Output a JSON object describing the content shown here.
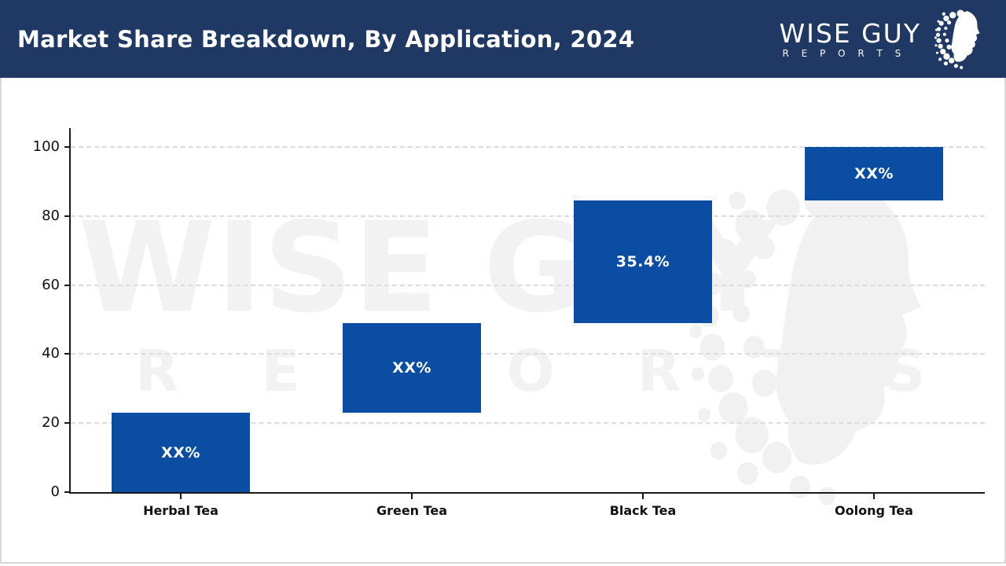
{
  "header": {
    "title": "Market Share Breakdown, By Application, 2024"
  },
  "logo": {
    "name_line": "WISE GUY",
    "sub_line": "R E P O R T S"
  },
  "watermark": {
    "name_line": "WISE GUY",
    "sub_line": "R E P O R T S"
  },
  "colors": {
    "header_bg": "#1f3864",
    "bar_fill": "#0b4da2",
    "grid_line": "#dcdcdc",
    "axis": "#1a1a1a",
    "bar_label_text": "#ffffff"
  },
  "chart_data": {
    "type": "bar",
    "variant": "floating-waterfall",
    "title": "Market Share Breakdown, By Application, 2024",
    "categories": [
      "Herbal Tea",
      "Green Tea",
      "Black Tea",
      "Oolong Tea"
    ],
    "series": [
      {
        "name": "Market share (%)",
        "segments": [
          {
            "category": "Herbal Tea",
            "start": 0,
            "end": 23,
            "label": "XX%"
          },
          {
            "category": "Green Tea",
            "start": 23,
            "end": 49,
            "label": "XX%"
          },
          {
            "category": "Black Tea",
            "start": 49,
            "end": 84.4,
            "label": "35.4%"
          },
          {
            "category": "Oolong Tea",
            "start": 84.4,
            "end": 100,
            "label": "XX%"
          }
        ]
      }
    ],
    "ylim": [
      0,
      100
    ],
    "yticks": [
      0,
      20,
      40,
      60,
      80,
      100
    ],
    "xlabel": "",
    "ylabel": "",
    "grid": {
      "horizontal": true,
      "style": "dashed"
    },
    "legend": "none"
  }
}
